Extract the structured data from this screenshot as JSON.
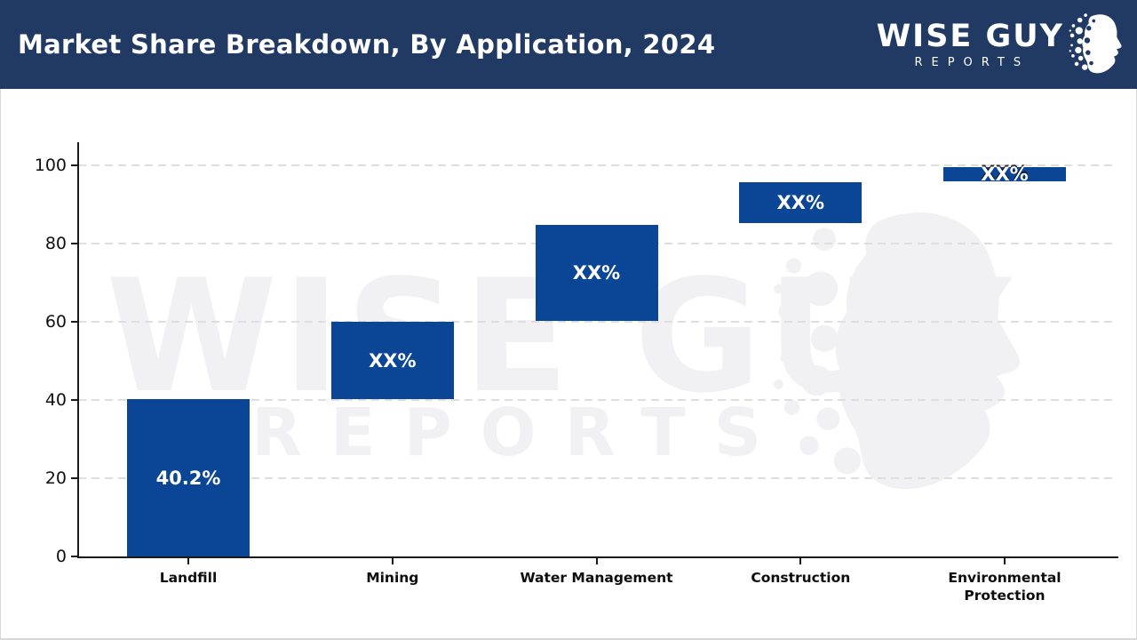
{
  "header": {
    "title": "Market Share Breakdown, By Application, 2024",
    "logo": {
      "line1": "WISE GUY",
      "line2": "REPORTS"
    }
  },
  "watermark": {
    "line1": "WISE GUY",
    "line2": "REPORTS"
  },
  "colors": {
    "header_bg": "#213a64",
    "bar": "#0b4596",
    "bar_label": "#ffffff",
    "grid": "#dedede",
    "axis": "#1a1a1a",
    "watermark": "#f1f1f4",
    "frame": "#d8d8d8"
  },
  "chart_data": {
    "type": "bar",
    "subtype": "waterfall",
    "title": "Market Share Breakdown, By Application, 2024",
    "xlabel": "",
    "ylabel": "",
    "categories": [
      "Landfill",
      "Mining",
      "Water Management",
      "Construction",
      "Environmental Protection"
    ],
    "segments": [
      {
        "start": 0,
        "end": 40.2,
        "label": "40.2%"
      },
      {
        "start": 40.2,
        "end": 60.0,
        "label": "XX%"
      },
      {
        "start": 60.2,
        "end": 84.8,
        "label": "XX%"
      },
      {
        "start": 85.2,
        "end": 95.7,
        "label": "XX%"
      },
      {
        "start": 95.8,
        "end": 99.5,
        "label": "XX%"
      }
    ],
    "yticks": [
      0,
      20,
      40,
      60,
      80,
      100
    ],
    "ylim": [
      0,
      105
    ],
    "grid": "horizontal-dashed",
    "legend": "none"
  }
}
